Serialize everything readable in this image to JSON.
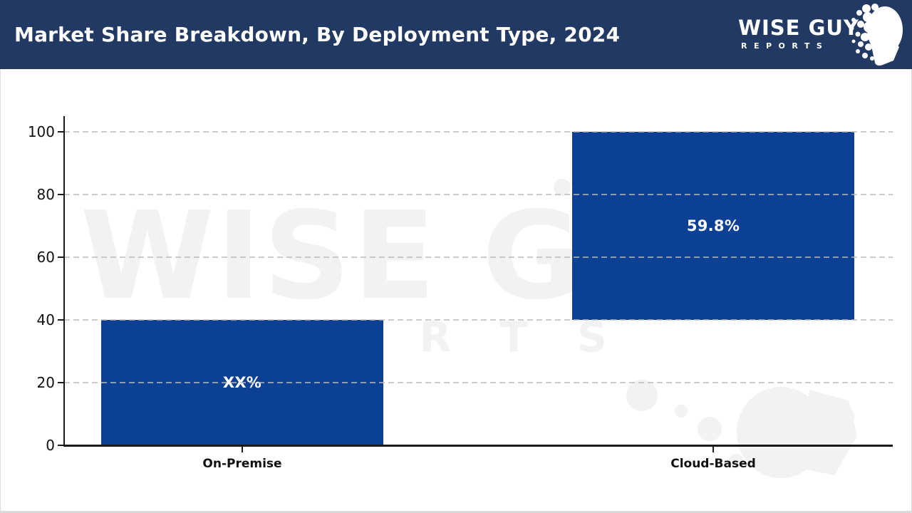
{
  "header": {
    "title": "Market Share Breakdown, By Deployment Type, 2024",
    "bg_color": "#223a63",
    "logo": {
      "wordmark": "WISE GUY",
      "subtitle": "REPORTS"
    }
  },
  "watermark": {
    "wordmark": "WISE GUY",
    "subtitle": "REPORTS"
  },
  "chart_data": {
    "type": "bar",
    "title": "Market Share Breakdown, By Deployment Type, 2024",
    "categories": [
      "On-Premise",
      "Cloud-Based"
    ],
    "bars": [
      {
        "category": "On-Premise",
        "value_label": "XX%",
        "range": [
          0,
          40
        ]
      },
      {
        "category": "Cloud-Based",
        "value_label": "59.8%",
        "value": 59.8,
        "range": [
          40,
          100
        ]
      }
    ],
    "ylim": [
      0,
      100
    ],
    "yticks": [
      0,
      20,
      40,
      60,
      80,
      100
    ],
    "grid": {
      "horizontal": true,
      "style": "dashed",
      "color": "#dcdcdc"
    },
    "bar_color": "#0b4095",
    "bar_label_color": "#ffffff",
    "legend": null
  }
}
